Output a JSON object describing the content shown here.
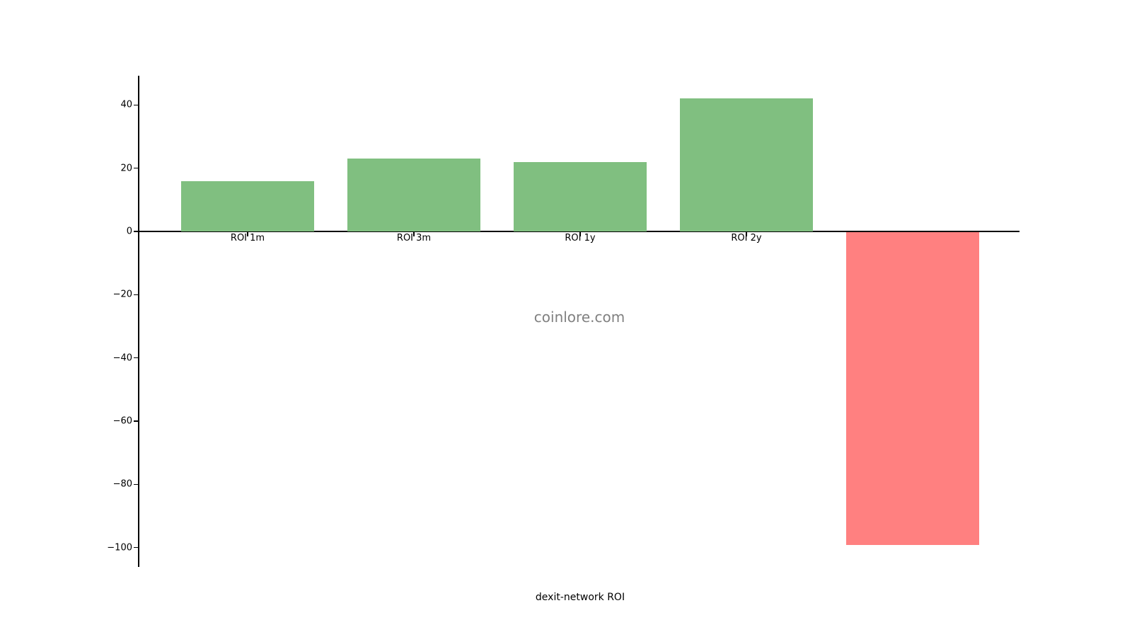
{
  "watermark": {
    "text": "coinlore.com",
    "color": "#808080"
  },
  "chart_data": {
    "type": "bar",
    "title": "dexit-network ROI",
    "categories": [
      "ROI 1m",
      "ROI 3m",
      "ROI 1y",
      "ROI 2y",
      ""
    ],
    "values": [
      16,
      23,
      22,
      42,
      -99
    ],
    "positive_color": "#80bf80",
    "negative_color": "#ff8080",
    "axis_color": "#000000",
    "tick_label_color": "#000000",
    "y_ticks": [
      40,
      20,
      0,
      -20,
      -40,
      -60,
      -80,
      -100
    ],
    "ylim": [
      -106,
      49
    ],
    "xlabel": "",
    "ylabel": "",
    "grid": false
  }
}
